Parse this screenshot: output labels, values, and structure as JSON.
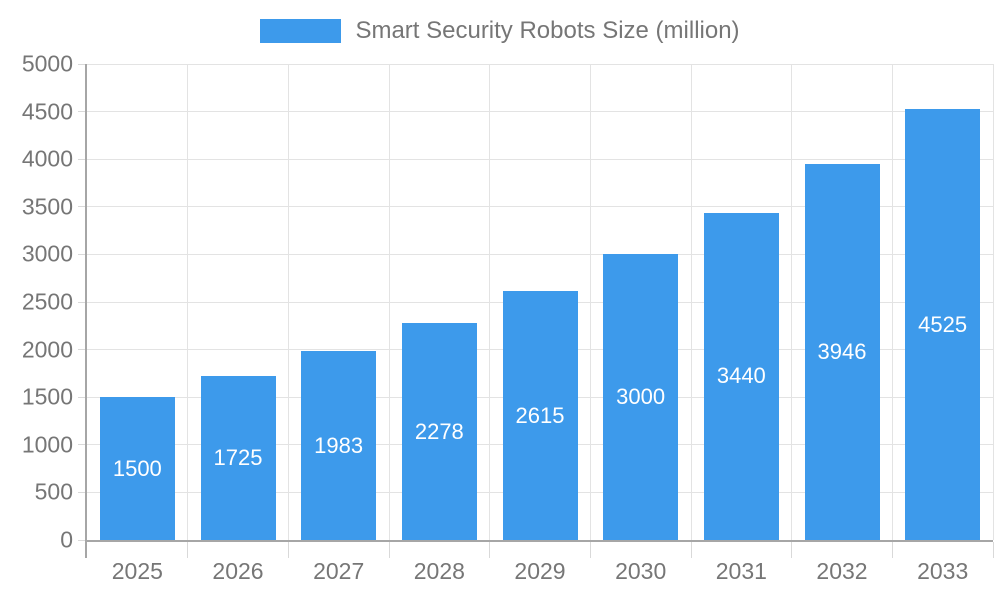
{
  "legend": {
    "label": "Smart Security Robots Size (million)"
  },
  "chart_data": {
    "type": "bar",
    "title": "Smart Security Robots Size (million)",
    "categories": [
      "2025",
      "2026",
      "2027",
      "2028",
      "2029",
      "2030",
      "2031",
      "2032",
      "2033"
    ],
    "values": [
      1500,
      1725,
      1983,
      2278,
      2615,
      3000,
      3440,
      3946,
      4525
    ],
    "series": [
      {
        "name": "Smart Security Robots Size (million)",
        "values": [
          1500,
          1725,
          1983,
          2278,
          2615,
          3000,
          3440,
          3946,
          4525
        ]
      }
    ],
    "xlabel": "",
    "ylabel": "",
    "ylim": [
      0,
      5000
    ],
    "ytick_step": 500,
    "grid": true,
    "legend_position": "top",
    "bar_labels_inside": true
  },
  "colors": {
    "bar": "#3D9AEB",
    "bar_label": "#ffffff",
    "text": "#767676",
    "grid": "#e3e3e3",
    "tick": "#d9d9d9",
    "axis": "#a6a6a6",
    "background": "#ffffff"
  }
}
